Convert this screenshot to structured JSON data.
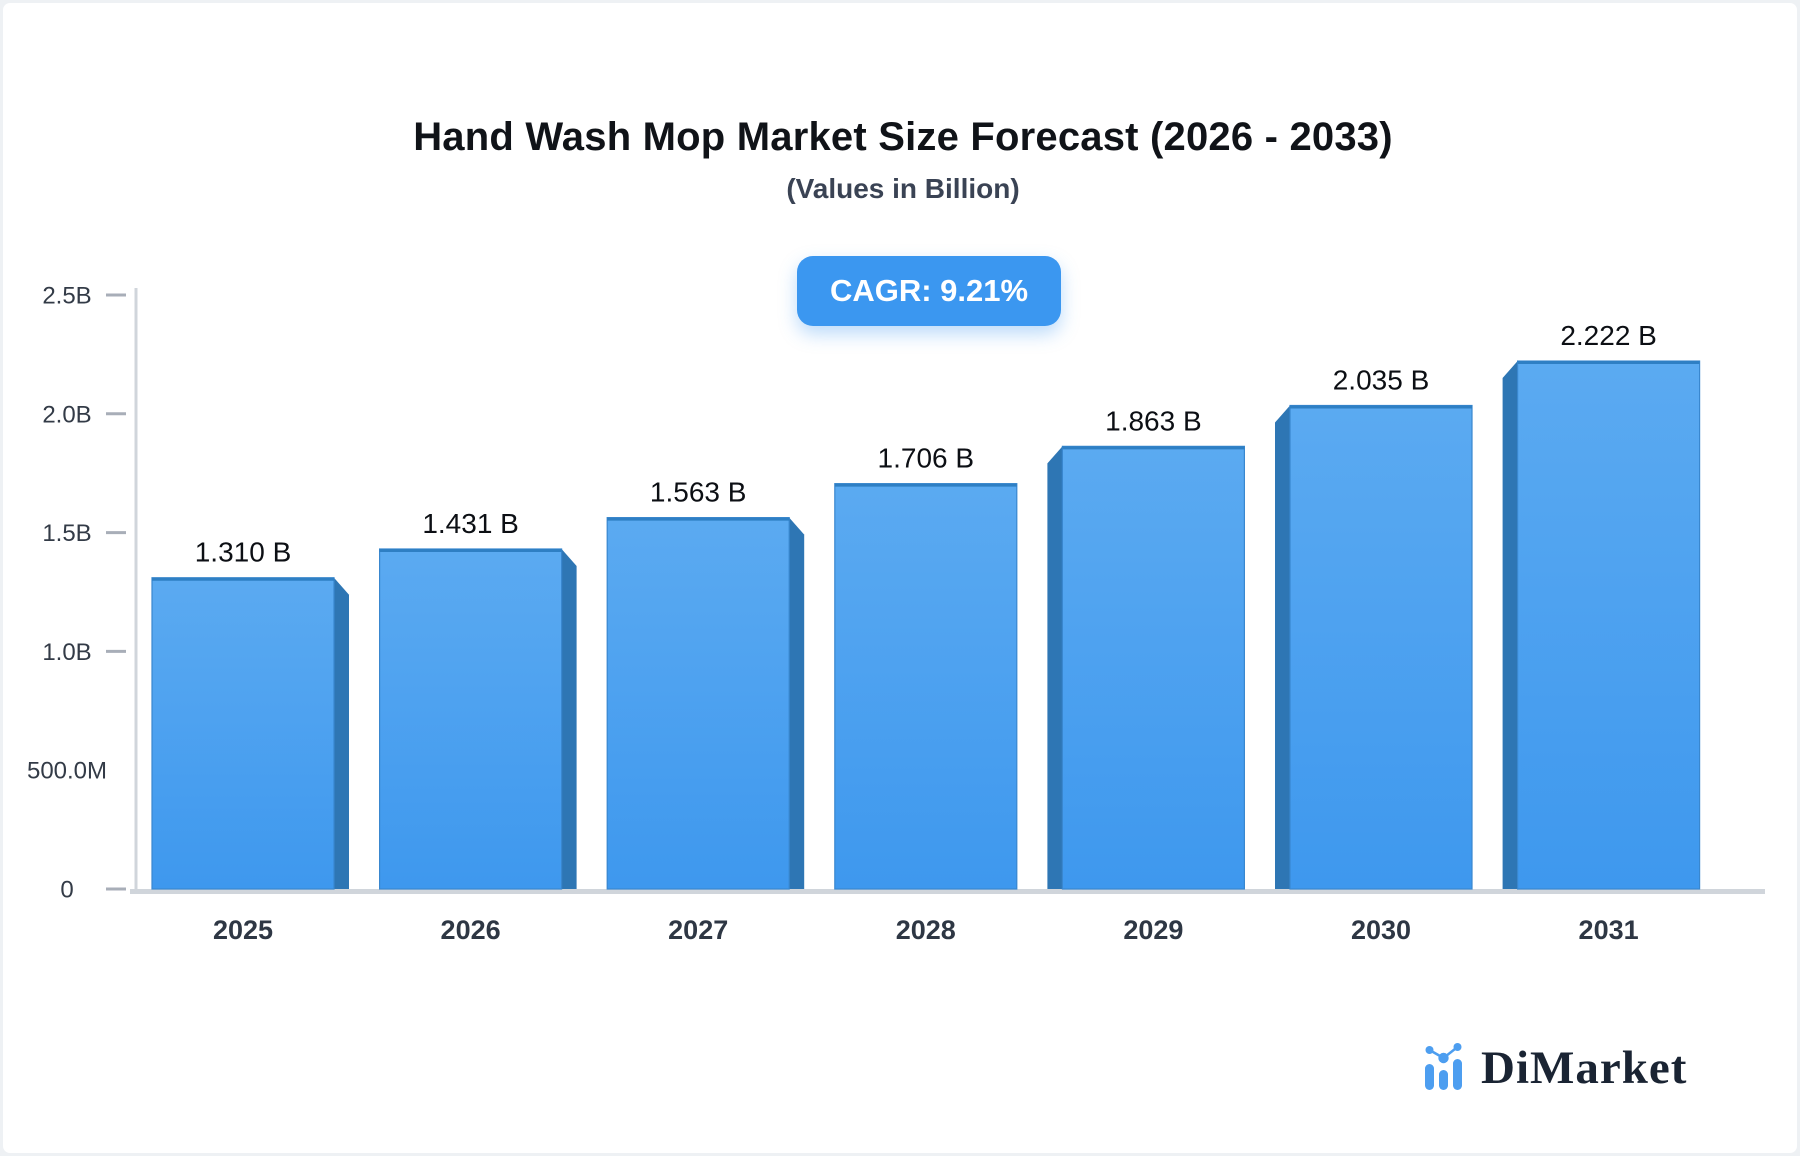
{
  "header": {
    "title": "Hand Wash Mop Market Size Forecast (2026 - 2033)",
    "subtitle": "(Values in Billion)"
  },
  "badge": {
    "label": "CAGR: 9.21%",
    "color": "#3b97f0"
  },
  "chart_data": {
    "type": "bar",
    "title": "Hand Wash Mop Market Size Forecast (2026 - 2033)",
    "subtitle": "(Values in Billion)",
    "categories": [
      "2025",
      "2026",
      "2027",
      "2028",
      "2029",
      "2030",
      "2031"
    ],
    "values": [
      1.31,
      1.431,
      1.563,
      1.706,
      1.863,
      2.035,
      2.222
    ],
    "value_labels": [
      "1.310 B",
      "1.431 B",
      "1.563 B",
      "1.706 B",
      "1.863 B",
      "2.035 B",
      "2.222 B"
    ],
    "xlabel": "",
    "ylabel": "",
    "ylim": [
      0,
      2.5
    ],
    "yticks": [
      {
        "label": "2.5B",
        "value": 2.5,
        "dash": true
      },
      {
        "label": "2.0B",
        "value": 2.0,
        "dash": true
      },
      {
        "label": "1.5B",
        "value": 1.5,
        "dash": true
      },
      {
        "label": "1.0B",
        "value": 1.0,
        "dash": true
      },
      {
        "label": "500.0M",
        "value": 0.5,
        "dash": false
      },
      {
        "label": "0",
        "value": 0.0,
        "dash": true
      }
    ],
    "grid": false,
    "legend": "none",
    "colors": {
      "bar_face_top": "#5baaf1",
      "bar_face_bottom": "#3e98ee",
      "bar_face_edge": "#3987cf",
      "bar_top_edge": "#2e7fc4",
      "bar_side_face": "#2e76b4",
      "axis_line": "#d0d5db",
      "tick_dash": "#a8aeb8",
      "tick_label": "#333b47",
      "category_label": "#2e3744",
      "value_label": "#0c0f14"
    }
  },
  "logo": {
    "text": "DiMarket",
    "icon": "bar-chart-icon",
    "icon_color": "#4d9ef0",
    "text_color": "#1a2433"
  }
}
